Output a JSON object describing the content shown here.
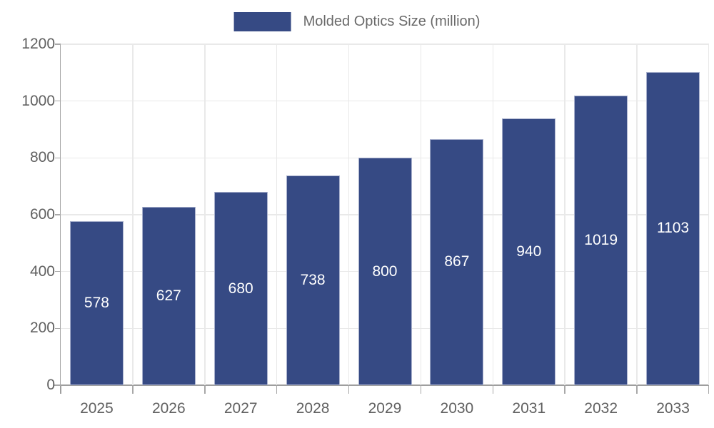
{
  "chart_data": {
    "type": "bar",
    "title": "",
    "legend": "Molded Optics Size (million)",
    "categories": [
      "2025",
      "2026",
      "2027",
      "2028",
      "2029",
      "2030",
      "2031",
      "2032",
      "2033"
    ],
    "values": [
      578,
      627,
      680,
      738,
      800,
      867,
      940,
      1019,
      1103
    ],
    "xlabel": "",
    "ylabel": "",
    "ylim": [
      0,
      1200
    ],
    "yticks": [
      0,
      200,
      400,
      600,
      800,
      1000,
      1200
    ],
    "grid": true,
    "legend_position": "top-center",
    "value_labels_position": "inside-center",
    "colors": {
      "bar": "#364a84",
      "bar_border": "#a9b1cd",
      "value_label": "#ffffff",
      "axis_text": "#606060",
      "legend_text": "#6a6a6a",
      "grid_line": "#e9e9e9",
      "axis_line": "#9e9e9e",
      "tick": "#a8a8a8"
    }
  }
}
